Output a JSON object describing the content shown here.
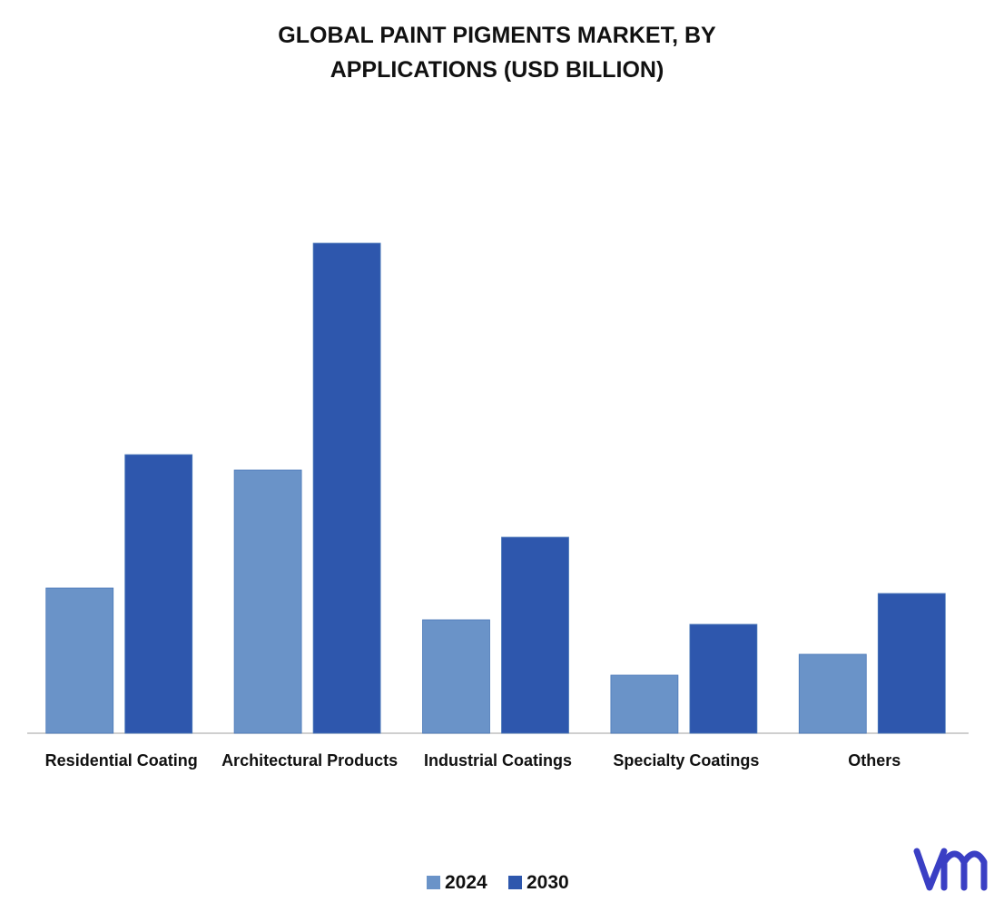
{
  "chart_data": {
    "type": "bar",
    "title": "GLOBAL PAINT PIGMENTS MARKET, BY APPLICATIONS (USD BILLION)",
    "categories": [
      "Residential Coating",
      "Architectural Products",
      "Industrial Coatings",
      "Specialty Coatings",
      "Others"
    ],
    "series": [
      {
        "name": "2024",
        "color": "#6a93c8",
        "values": [
          1.6,
          2.9,
          1.25,
          0.64,
          0.87
        ]
      },
      {
        "name": "2030",
        "color": "#2e57ad",
        "values": [
          3.07,
          5.4,
          2.16,
          1.2,
          1.54
        ]
      }
    ]
  }
}
